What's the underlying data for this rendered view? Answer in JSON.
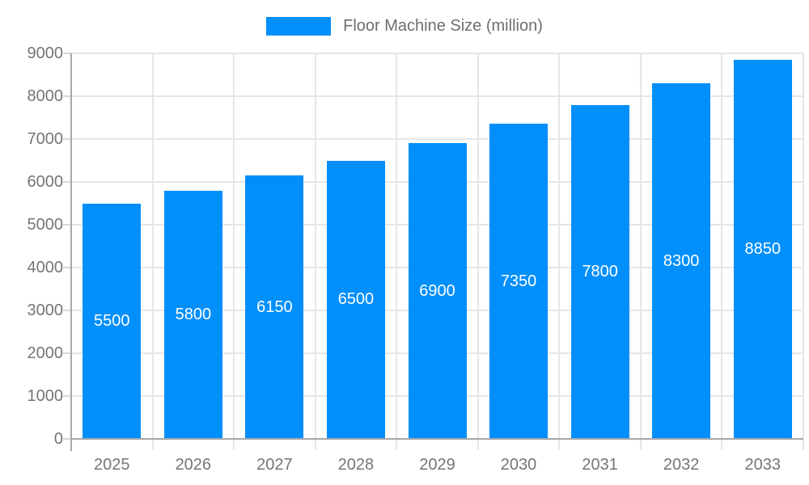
{
  "chart_data": {
    "type": "bar",
    "title": "Floor Machine Size (million)",
    "legend": {
      "label": "Floor Machine Size (million)",
      "position": "top-center",
      "marker": "rectangle"
    },
    "categories": [
      "2025",
      "2026",
      "2027",
      "2028",
      "2029",
      "2030",
      "2031",
      "2032",
      "2033"
    ],
    "series": [
      {
        "name": "Floor Machine Size (million)",
        "values": [
          5500,
          5800,
          6150,
          6500,
          6900,
          7350,
          7800,
          8300,
          8850
        ]
      }
    ],
    "value_labels": [
      "5500",
      "5800",
      "6150",
      "6500",
      "6900",
      "7350",
      "7800",
      "8300",
      "8850"
    ],
    "value_label_style": "white text centered inside bar",
    "xlabel": "",
    "ylabel": "",
    "ylim": [
      0,
      9000
    ],
    "ytick_step": 1000,
    "ytick_labels": [
      "0",
      "1000",
      "2000",
      "3000",
      "4000",
      "5000",
      "6000",
      "7000",
      "8000",
      "9000"
    ],
    "grid": "horizontal and vertical light-gray gridlines",
    "colors": {
      "bar": "#008FFB",
      "gridline": "#e6e6e6",
      "axis_line": "#a8a8a8",
      "tick": "#d9d9d9",
      "axis_text": "#757575",
      "legend_text": "#6e6e6e",
      "value_text": "#ffffff",
      "background": "#ffffff"
    }
  }
}
